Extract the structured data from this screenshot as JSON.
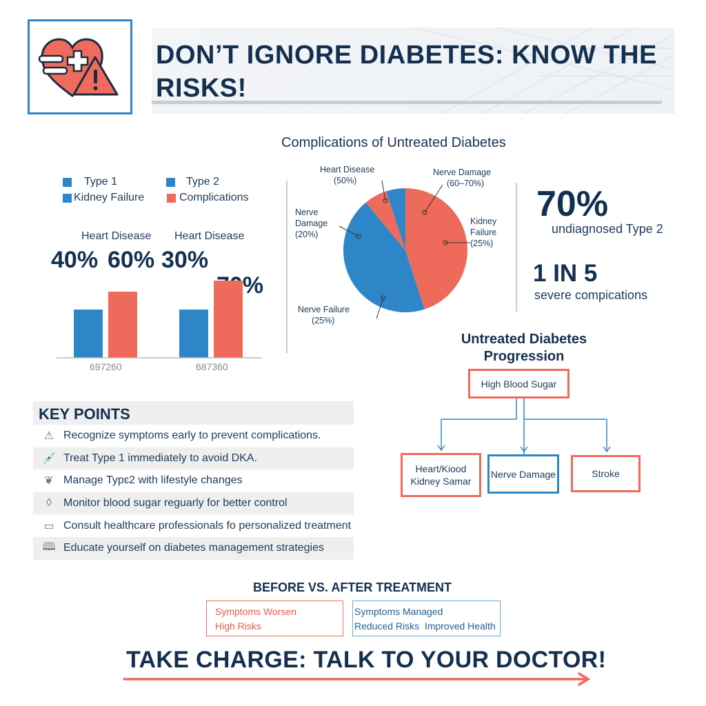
{
  "header": {
    "title_line1": "DON’T IGNORE DIABETES: KNOW THE",
    "title_line2": "RISKS!",
    "logo_icon": "heart-medical-warning-icon"
  },
  "colors": {
    "blue": "#2e86c8",
    "red": "#ee6a5a",
    "navy": "#13304f"
  },
  "chart_data": [
    {
      "type": "bar",
      "legend": [
        "Type 1",
        "Type 2",
        "Kidney Failure",
        "Complications"
      ],
      "legend_colors": [
        "#2e86c8",
        "#2e86c8",
        "#2e86c8",
        "#ee6a5a"
      ],
      "categories": [
        "697260",
        "687360"
      ],
      "group_labels": [
        "Heart Disease",
        "Heart Disease"
      ],
      "series": [
        {
          "values": [
            40,
            30
          ]
        },
        {
          "values": [
            60,
            70
          ]
        }
      ],
      "data_labels": [
        [
          "40%",
          "60%"
        ],
        [
          "30%",
          "70%"
        ]
      ]
    },
    {
      "type": "pie",
      "title": "Complications of Untreated Diabetes",
      "slices": [
        {
          "label": "Nerve Damage",
          "pct": "(60–70%)",
          "value": 45,
          "color": "#ee6a5a"
        },
        {
          "label": "Kidney Failure",
          "pct": "(25%)",
          "value": 0,
          "color": "#ee6a5a"
        },
        {
          "label": "Nerve Failure",
          "pct": "(25%)",
          "value": 44,
          "color": "#2e86c8"
        },
        {
          "label": "Nerve Damage",
          "pct": "(20%)",
          "value": 0,
          "color": "#2e86c8"
        },
        {
          "label": "Heart Disease",
          "pct": "(50%)",
          "value": 6,
          "color": "#ee6a5a"
        },
        {
          "label": "",
          "pct": "",
          "value": 5,
          "color": "#2e86c8"
        }
      ]
    }
  ],
  "stats": {
    "s1_value": "70%",
    "s1_label": "undiagnosed Type 2",
    "s2_value": "1 IN 5",
    "s2_label": "severe compications"
  },
  "key_points": {
    "title": "KEY POINTS",
    "items": [
      {
        "icon": "warning-icon",
        "text": "Recognize symptoms early to prevent complications."
      },
      {
        "icon": "syringe-icon",
        "text": "Treat Type 1 immediately to avoid DKA."
      },
      {
        "icon": "leaf-icon",
        "text": "Manage Typɛ2 with lifestyle changes"
      },
      {
        "icon": "drop-icon",
        "text": "Monitor blood sugar reguarly for better control"
      },
      {
        "icon": "medical-bag-icon",
        "text": "Consult healthcare professionals fo personalized treatment"
      },
      {
        "icon": "book-icon",
        "text": "Educate yourself on diabetes management strategies"
      }
    ]
  },
  "progression": {
    "title_line1": "Untreated Diabetes",
    "title_line2": "Progression",
    "root": "High Blood Sugar",
    "child1_line1": "Heart/Kiood",
    "child1_line2": "Kidney Samar",
    "child2": "Nerve Damage",
    "child3": "Stroke"
  },
  "treatment": {
    "title": "BEFORE VS. AFTER TREATMENT",
    "before_line1": "Symptoms Worsen",
    "before_line2": "High Risks",
    "after_line1": "Symptoms Managed",
    "after_line2": "Reduced Risks  Improved Health"
  },
  "footer": {
    "cta": "TAKE CHARGE: TALK TO YOUR DOCTOR!"
  }
}
